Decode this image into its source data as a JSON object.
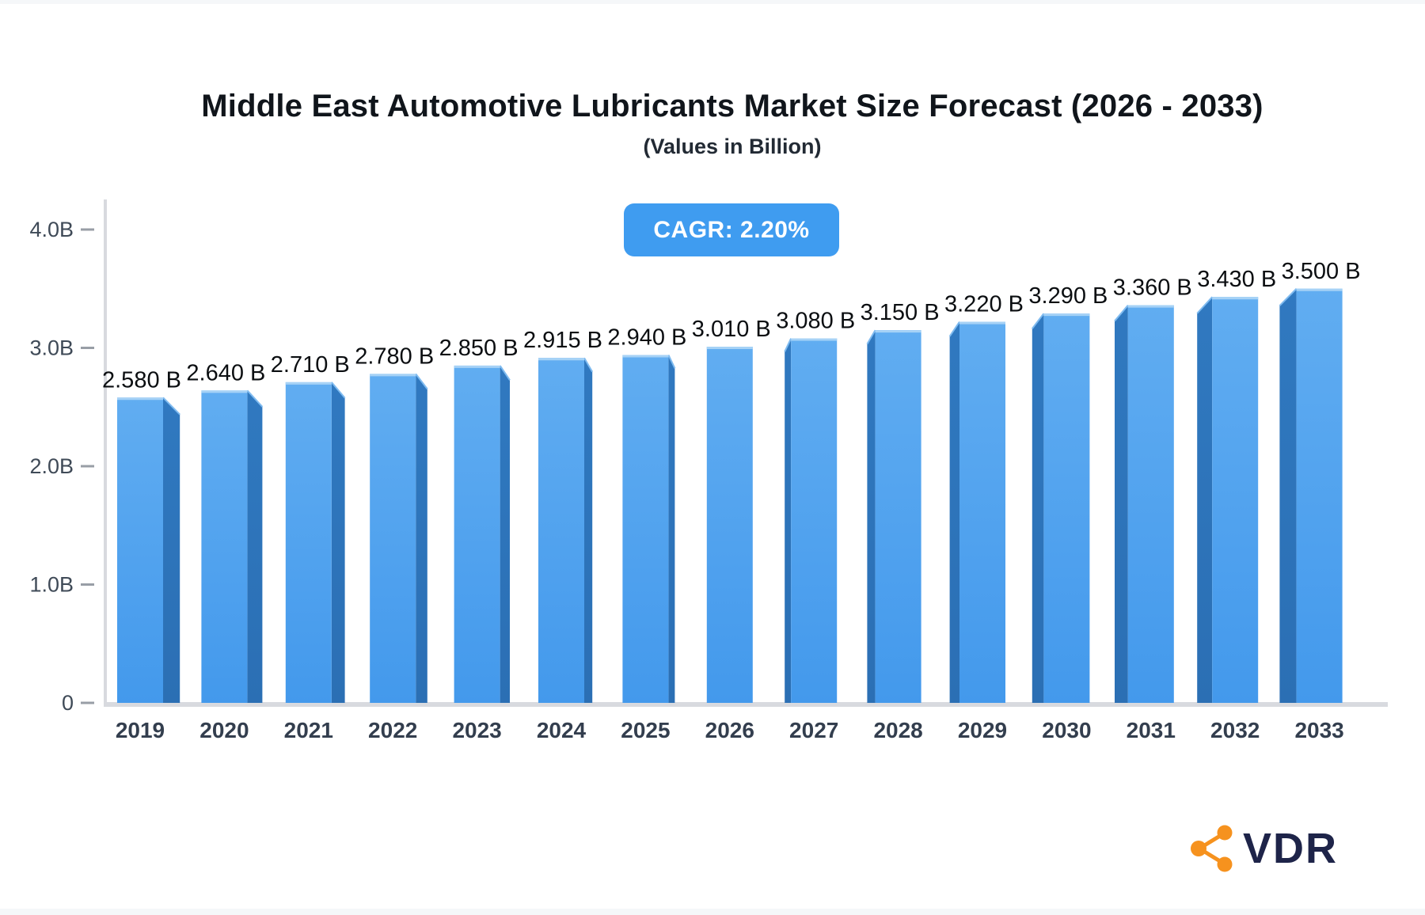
{
  "page": {
    "background": "#ffffff",
    "edge_strip_color": "#f5f7f9"
  },
  "header": {
    "title": "Middle East Automotive Lubricants Market Size Forecast (2026 - 2033)",
    "subtitle": "(Values in Billion)"
  },
  "badge": {
    "label": "CAGR: 2.20%",
    "bg": "#3f9cf0",
    "text_color": "#ffffff"
  },
  "chart_data": {
    "type": "bar",
    "title": "Middle East Automotive Lubricants Market Size Forecast (2026 - 2033)",
    "subtitle": "(Values in Billion)",
    "unit": "Billion",
    "categories": [
      "2019",
      "2020",
      "2021",
      "2022",
      "2023",
      "2024",
      "2025",
      "2026",
      "2027",
      "2028",
      "2029",
      "2030",
      "2031",
      "2032",
      "2033"
    ],
    "values": [
      2.58,
      2.64,
      2.71,
      2.78,
      2.85,
      2.915,
      2.94,
      3.01,
      3.08,
      3.15,
      3.22,
      3.29,
      3.36,
      3.43,
      3.5
    ],
    "labels": [
      "2.580 B",
      "2.640 B",
      "2.710 B",
      "2.780 B",
      "2.850 B",
      "2.915 B",
      "2.940 B",
      "3.010 B",
      "3.080 B",
      "3.150 B",
      "3.220 B",
      "3.290 B",
      "3.360 B",
      "3.430 B",
      "3.500 B"
    ],
    "ylim": [
      0,
      4
    ],
    "yticks": [
      {
        "value": 4,
        "label": "4.0B"
      },
      {
        "value": 3,
        "label": "3.0B"
      },
      {
        "value": 2,
        "label": "2.0B"
      },
      {
        "value": 1,
        "label": "1.0B"
      },
      {
        "value": 0,
        "label": "0"
      }
    ],
    "grid": false,
    "legend": false,
    "style": "3d-perspective-bars",
    "colors": {
      "bar_face_top": "#61adf1",
      "bar_face_bottom": "#4399ec",
      "bar_side_top": "#3079c0",
      "bar_side_bottom": "#2b6fb4",
      "bar_top_highlight": "#a6d2f6",
      "bar_slope_highlight": "#7fbbf0",
      "axis_line": "#d8dadf",
      "tick_dash": "#989ea6",
      "ytick_label": "#3f4a57",
      "xtick_label": "#333e4e",
      "value_label": "#0b0e11"
    }
  },
  "logo": {
    "icon": "share-icon",
    "icon_color": "#f6921e",
    "text": "VDR",
    "text_color": "#1e2449"
  }
}
